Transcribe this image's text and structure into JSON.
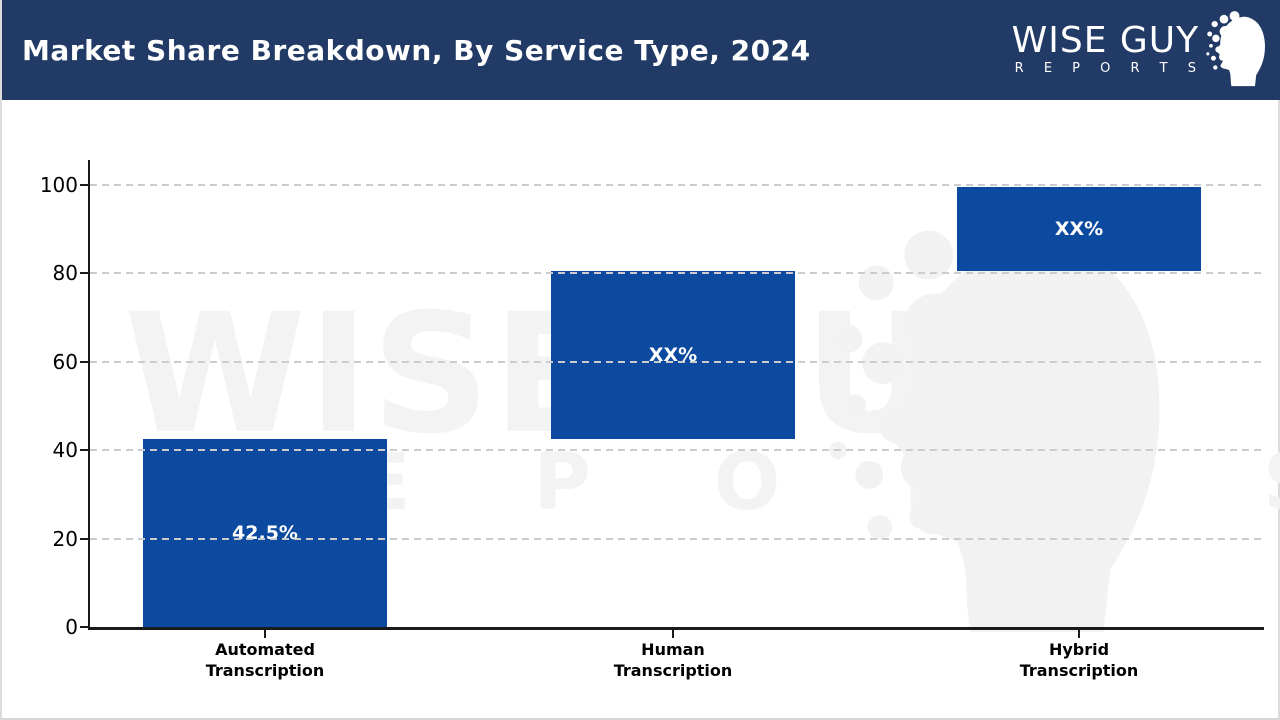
{
  "header": {
    "title": "Market Share Breakdown, By Service Type, 2024",
    "logo": {
      "wordmark": "WISE GUY",
      "subtitle": "R E P O R T S"
    }
  },
  "watermark": {
    "wordmark": "WISE GUY",
    "subtitle": "R E P O R T S"
  },
  "chart_data": {
    "type": "bar",
    "subtype": "waterfall",
    "title": "Market Share Breakdown, By Service Type, 2024",
    "categories": [
      "Automated Transcription",
      "Human Transcription",
      "Hybrid Transcription"
    ],
    "category_lines": [
      [
        "Automated",
        "Transcription"
      ],
      [
        "Human",
        "Transcription"
      ],
      [
        "Hybrid",
        "Transcription"
      ]
    ],
    "segments": [
      {
        "category": "Automated Transcription",
        "start": 0,
        "end": 42.5,
        "label": "42.5%"
      },
      {
        "category": "Human Transcription",
        "start": 42.5,
        "end": 80.5,
        "label": "XX%"
      },
      {
        "category": "Hybrid Transcription",
        "start": 80.5,
        "end": 99.5,
        "label": "XX%"
      }
    ],
    "values_display": [
      "42.5%",
      "XX%",
      "XX%"
    ],
    "ylim": [
      0,
      105
    ],
    "yticks": [
      0,
      20,
      40,
      60,
      80,
      100
    ],
    "xlabel": "",
    "ylabel": "",
    "grid": "horizontal-dashed",
    "legend": "none",
    "colors": {
      "bar": "#0c4aa0",
      "bar_label": "#ffffff",
      "grid": "#cccccc",
      "axis": "#1a1a1a",
      "header_bg": "#213a66",
      "watermark": "#f3f3f3"
    }
  }
}
